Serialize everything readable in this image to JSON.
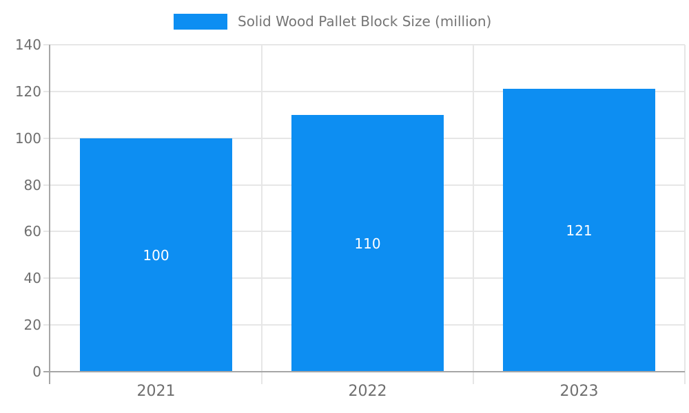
{
  "chart_data": {
    "type": "bar",
    "title": "Solid Wood Pallet Block Size (million)",
    "categories": [
      "2021",
      "2022",
      "2023"
    ],
    "series": [
      {
        "name": "Solid Wood Pallet Block Size (million)",
        "color": "#0d8ef2",
        "values": [
          100,
          110,
          121
        ]
      }
    ],
    "ylim": [
      0,
      140
    ],
    "yticks": [
      0,
      20,
      40,
      60,
      80,
      100,
      120,
      140
    ],
    "grid": true,
    "legend_position": "top-center",
    "data_labels": true
  },
  "colors": {
    "bar": "#0d8ef2",
    "grid": "#e6e6e6",
    "axis": "#a6a6a6",
    "tick_text": "#6e6e6e",
    "legend_text": "#757575",
    "bar_label": "#ffffff",
    "background": "#ffffff"
  }
}
